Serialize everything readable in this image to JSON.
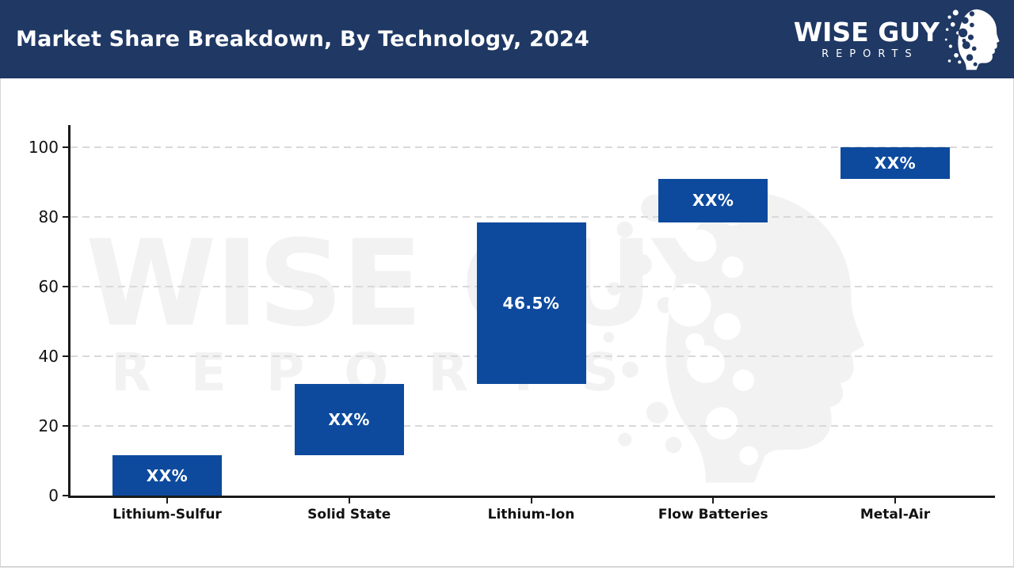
{
  "header": {
    "title": "Market Share Breakdown, By Technology, 2024",
    "logo": {
      "line1": "WISE GUY",
      "line2": "REPORTS"
    }
  },
  "watermark": {
    "line1": "WISE GUY",
    "line2": "REPORTS"
  },
  "colors": {
    "header_bg": "#1f3864",
    "bar": "#0d4a9e",
    "gridline": "#d9d9d9",
    "axis": "#1a1a1a",
    "watermark": "#f2f2f2",
    "panel_border": "#d6d6d6",
    "bar_label": "#ffffff"
  },
  "chart_data": {
    "type": "bar",
    "variant": "floating-waterfall",
    "title": "Market Share Breakdown, By Technology, 2024",
    "categories": [
      "Lithium-Sulfur",
      "Solid State",
      "Lithium-Ion",
      "Flow Batteries",
      "Metal-Air"
    ],
    "segments": [
      {
        "category": "Lithium-Sulfur",
        "start": 0,
        "end": 11.5,
        "value": 11.5,
        "label": "XX%"
      },
      {
        "category": "Solid State",
        "start": 11.5,
        "end": 32,
        "value": 20.5,
        "label": "XX%"
      },
      {
        "category": "Lithium-Ion",
        "start": 32,
        "end": 78.5,
        "value": 46.5,
        "label": "46.5%"
      },
      {
        "category": "Flow Batteries",
        "start": 78.5,
        "end": 91,
        "value": 12.5,
        "label": "XX%"
      },
      {
        "category": "Metal-Air",
        "start": 91,
        "end": 100,
        "value": 9,
        "label": "XX%"
      }
    ],
    "xlabel": "",
    "ylabel": "",
    "ylim": [
      0,
      100
    ],
    "yticks": [
      0,
      20,
      40,
      60,
      80,
      100
    ],
    "grid": "horizontal-dashed",
    "legend": "none",
    "bar_color": "#0d4a9e",
    "bar_label_color": "#ffffff"
  }
}
